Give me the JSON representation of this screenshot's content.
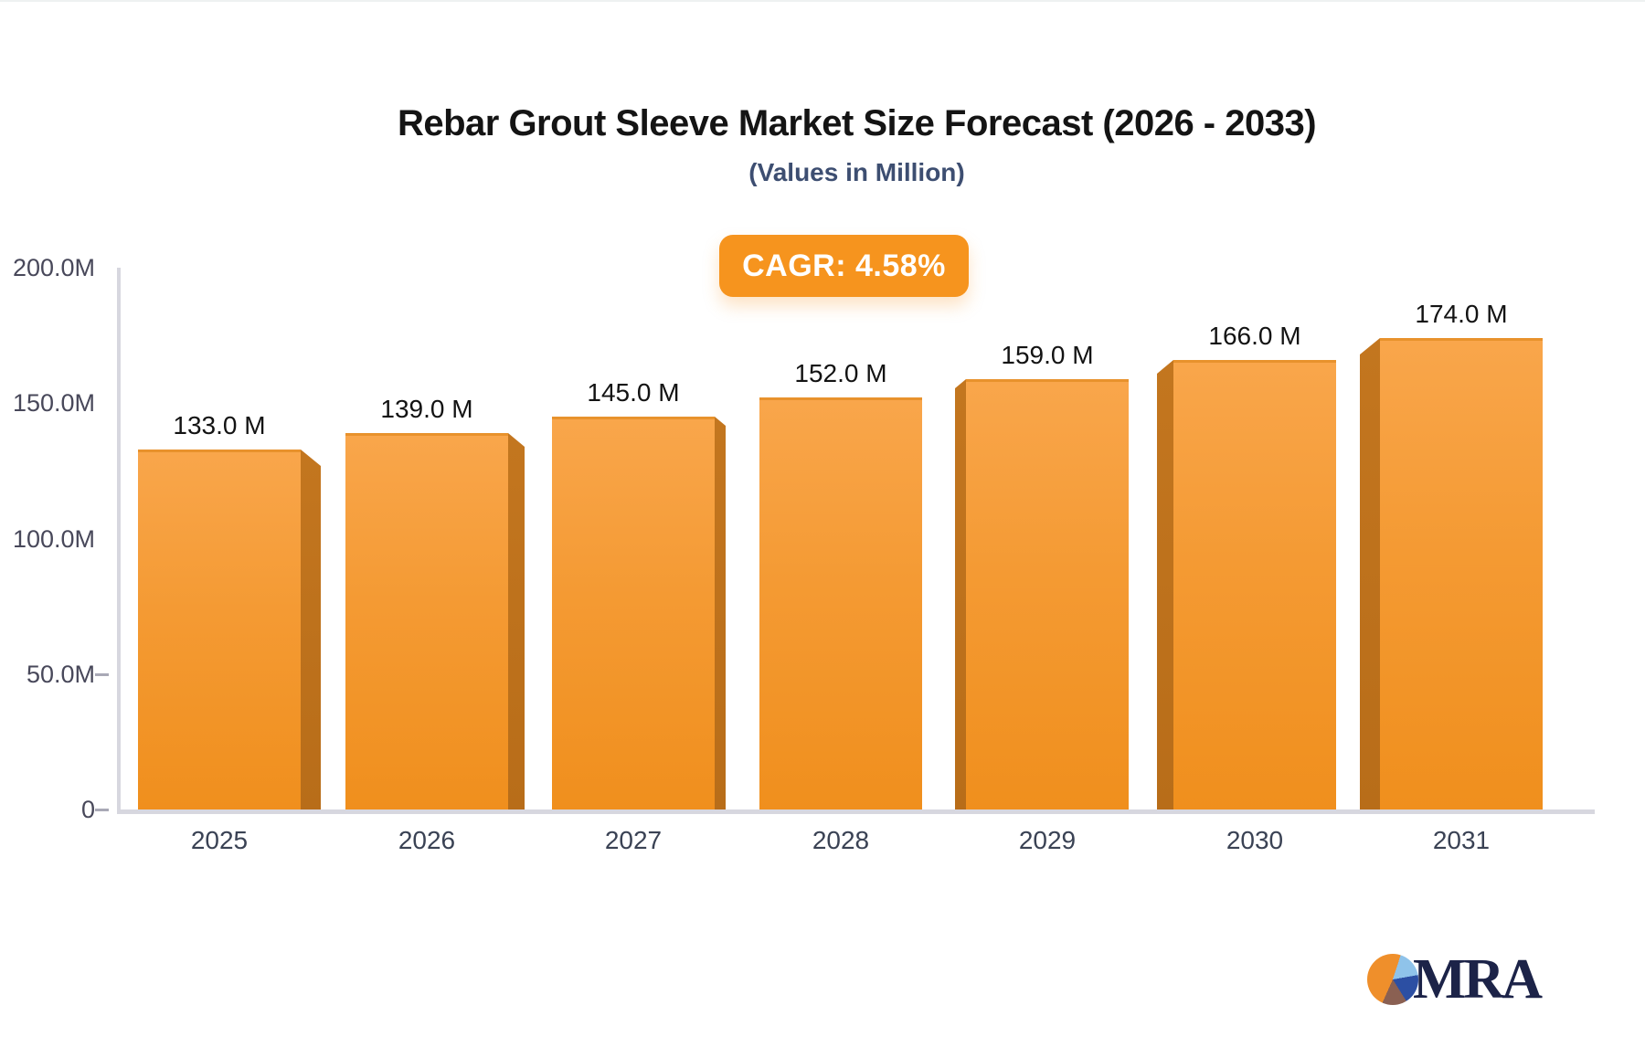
{
  "title": "Rebar Grout Sleeve Market Size Forecast (2026 - 2033)",
  "subtitle": "(Values in Million)",
  "badge": {
    "label": "CAGR: 4.58%"
  },
  "chart_data": {
    "type": "bar",
    "title": "Rebar Grout Sleeve Market Size Forecast (2026 - 2033)",
    "subtitle": "(Values in Million)",
    "categories": [
      "2025",
      "2026",
      "2027",
      "2028",
      "2029",
      "2030",
      "2031"
    ],
    "values": [
      133,
      139,
      145,
      152,
      159,
      166,
      174
    ],
    "value_labels": [
      "133.0 M",
      "139.0 M",
      "145.0 M",
      "152.0 M",
      "159.0 M",
      "166.0 M",
      "174.0 M"
    ],
    "xlabel": "",
    "ylabel": "",
    "ylim": [
      0,
      200
    ],
    "grid": false,
    "legend": null,
    "y_ticks": [
      {
        "label": "200.0M",
        "value": 200,
        "dash": false
      },
      {
        "label": "150.0M",
        "value": 150,
        "dash": false
      },
      {
        "label": "100.0M",
        "value": 100,
        "dash": false
      },
      {
        "label": "50.0M",
        "value": 50,
        "dash": true
      },
      {
        "label": "0",
        "value": 0,
        "dash": true
      }
    ],
    "annotation": "CAGR: 4.58%"
  },
  "logo": {
    "text": "MRA",
    "pie_icon": "pie-chart-icon"
  },
  "colors": {
    "bar_face_top": "#F9A64B",
    "bar_face_bottom": "#F08F1D",
    "bar_side": "#BC701B",
    "badge_bg": "#F6941E",
    "badge_text": "#FFFFFF",
    "axis": "#D7D7DF",
    "y_label": "#48485A",
    "x_label": "#3A4254",
    "subtitle": "#3D4E71",
    "logo_navy": "#1C2348"
  }
}
